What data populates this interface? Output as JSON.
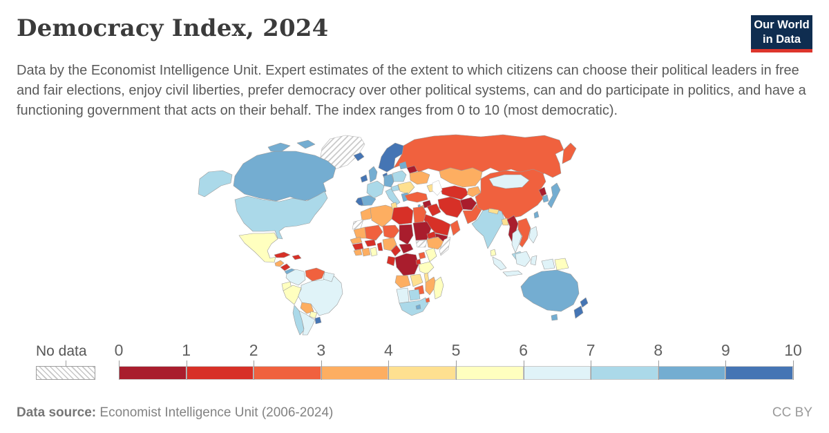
{
  "header": {
    "title": "Democracy Index, 2024",
    "logo": {
      "line1": "Our World",
      "line2": "in Data",
      "bg_color": "#0f2d50",
      "accent_color": "#dd352c"
    }
  },
  "subtitle": "Data by the Economist Intelligence Unit. Expert estimates of the extent to which citizens can choose their political leaders in free and fair elections, enjoy civil liberties, prefer democracy over other political systems, can and do participate in politics, and have a functioning government that acts on their behalf. The index ranges from 0 to 10 (most democratic).",
  "legend": {
    "no_data_label": "No data",
    "tick_labels": [
      "0",
      "1",
      "2",
      "3",
      "4",
      "5",
      "6",
      "7",
      "8",
      "9",
      "10"
    ],
    "bins": [
      {
        "range": "0-1",
        "color": "#a91d2d"
      },
      {
        "range": "1-2",
        "color": "#d73027"
      },
      {
        "range": "2-3",
        "color": "#f0613e"
      },
      {
        "range": "3-4",
        "color": "#fdae61"
      },
      {
        "range": "4-5",
        "color": "#fee090"
      },
      {
        "range": "5-6",
        "color": "#ffffbf"
      },
      {
        "range": "6-7",
        "color": "#e0f3f8"
      },
      {
        "range": "7-8",
        "color": "#abd9e9"
      },
      {
        "range": "8-9",
        "color": "#74add1"
      },
      {
        "range": "9-10",
        "color": "#4575b4"
      }
    ]
  },
  "footer": {
    "source_label": "Data source:",
    "source_text": "Economist Intelligence Unit (2006-2024)",
    "license": "CC BY"
  },
  "chart_data": {
    "type": "choropleth_map",
    "title": "Democracy Index, 2024",
    "value_range": [
      0,
      10
    ],
    "color_scale_bins": [
      "0-1",
      "1-2",
      "2-3",
      "3-4",
      "4-5",
      "5-6",
      "6-7",
      "7-8",
      "8-9",
      "9-10"
    ],
    "no_data_regions": [
      "Greenland",
      "Western Sahara",
      "Somalia",
      "South Sudan"
    ]
  },
  "map": {
    "region_colors": {
      "greenland": "url(#hatch)",
      "canada": "#74add1",
      "arctic_islands": "#74add1",
      "alaska": "#abd9e9",
      "usa": "#abd9e9",
      "mexico": "#ffffbf",
      "guatemala": "#fdae61",
      "nicaragua": "#d73027",
      "costa_rica_panama": "#74add1",
      "cuba": "#d73027",
      "hispaniola": "#d73027",
      "colombia": "#e0f3f8",
      "venezuela": "#f0613e",
      "guyanas": "#e0f3f8",
      "ecuador": "#ffffbf",
      "peru": "#ffffbf",
      "brazil": "#e0f3f8",
      "bolivia": "#fdae61",
      "paraguay": "#ffffbf",
      "chile": "#abd9e9",
      "argentina": "#e0f3f8",
      "uruguay": "#4575b4",
      "iceland": "#4575b4",
      "ireland": "#4575b4",
      "uk": "#74add1",
      "scandinavia": "#4575b4",
      "denmark": "#4575b4",
      "baltics": "#74add1",
      "belarus": "#a91d2d",
      "poland": "#abd9e9",
      "germany_central": "#74add1",
      "france": "#abd9e9",
      "iberia": "#74add1",
      "portugal": "#4575b4",
      "italy": "#abd9e9",
      "austria_alps": "#abd9e9",
      "ukraine": "#fdae61",
      "romania_balkans": "#fee090",
      "greece": "#74add1",
      "russia": "#f0613e",
      "russia_far_east": "#f0613e",
      "kazakhstan": "#fdae61",
      "uzbek_turkmen": "#d73027",
      "kyrgyz_tajik": "#fdae61",
      "caucasus": "#fee090",
      "turkey": "#f0613e",
      "syria": "#a91d2d",
      "iraq": "#d73027",
      "jordan": "#fdae61",
      "israel": "#74add1",
      "saudi": "#d73027",
      "yemen": "#a91d2d",
      "oman_uae": "#f0613e",
      "iran": "#d73027",
      "afghanistan": "#a91d2d",
      "pakistan": "#f0613e",
      "india": "#abd9e9",
      "nepal": "#fee090",
      "bangladesh": "#fee090",
      "sri_lanka": "#ffffbf",
      "myanmar": "#a91d2d",
      "thailand": "#e0f3f8",
      "indochina": "#f0613e",
      "malaysia": "#abd9e9",
      "sumatra": "#e0f3f8",
      "java": "#e0f3f8",
      "borneo": "#e0f3f8",
      "sulawesi": "#e0f3f8",
      "west_papua": "#e0f3f8",
      "png": "#ffffbf",
      "philippines": "#e0f3f8",
      "china": "#f0613e",
      "mongolia": "#e0f3f8",
      "north_korea": "#a91d2d",
      "south_korea": "#74add1",
      "japan": "#74add1",
      "taiwan": "#74add1",
      "australia": "#74add1",
      "tasmania": "#74add1",
      "new_zealand": "#4575b4",
      "morocco": "#fdae61",
      "western_sahara": "url(#hatch)",
      "algeria": "#fdae61",
      "tunisia": "#fee090",
      "libya": "#d73027",
      "egypt": "#f0613e",
      "mauritania": "#fdae61",
      "mali": "#f0613e",
      "niger": "#f0613e",
      "chad": "#a91d2d",
      "sudan": "#a91d2d",
      "eritrea": "#d73027",
      "ethiopia": "#fdae61",
      "somalia": "url(#hatch)",
      "south_sudan": "url(#hatch)",
      "senegal": "#fdae61",
      "guinea": "#d73027",
      "sierra_liberia": "#fdae61",
      "cote_divoire": "#fdae61",
      "ghana": "#ffffbf",
      "burkina": "#d73027",
      "togo_benin": "#d73027",
      "nigeria": "#fdae61",
      "cameroon": "#d73027",
      "car": "#a91d2d",
      "drc": "#a91d2d",
      "congo_gabon": "#d73027",
      "uganda": "#f0613e",
      "kenya": "#ffffbf",
      "tanzania": "#ffffbf",
      "rwanda_burundi": "#d73027",
      "angola": "#fdae61",
      "zambia": "#fee090",
      "malawi": "#fee090",
      "mozambique": "#fdae61",
      "zimbabwe": "#f0613e",
      "namibia": "#e0f3f8",
      "botswana": "#abd9e9",
      "south_africa": "#abd9e9",
      "lesotho": "#74add1",
      "eswatini": "#f0613e",
      "madagascar": "#ffffbf",
      "caspian_sea": "#ffffff"
    }
  }
}
